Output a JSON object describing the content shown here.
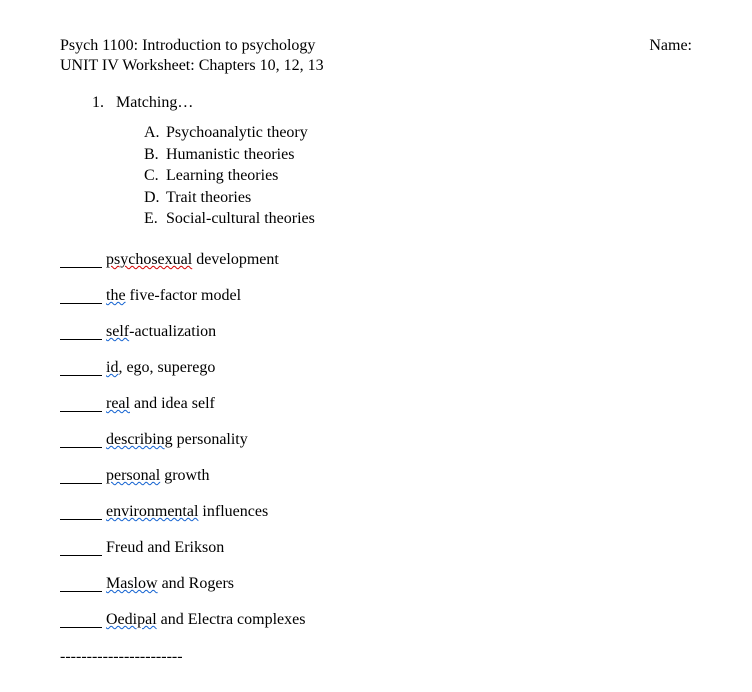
{
  "header": {
    "course_line": "Psych 1100:  Introduction to psychology",
    "name_label": "Name:",
    "unit_line": "UNIT IV Worksheet:  Chapters 10, 12, 13"
  },
  "question": {
    "number": "1.",
    "title": "Matching…"
  },
  "options": [
    {
      "letter": "A.",
      "text": "Psychoanalytic theory"
    },
    {
      "letter": "B.",
      "text": "Humanistic theories"
    },
    {
      "letter": "C.",
      "text": "Learning theories"
    },
    {
      "letter": "D.",
      "text": "Trait theories"
    },
    {
      "letter": "E.",
      "text": "Social-cultural theories"
    }
  ],
  "items": [
    {
      "pre": "psychosexual",
      "post": " development",
      "ul": "red"
    },
    {
      "pre": "the",
      "post": " five-factor model",
      "ul": "blue"
    },
    {
      "pre": "self",
      "post": "-actualization",
      "ul": "blue"
    },
    {
      "pre": "id",
      "post": ", ego, superego",
      "ul": "blue"
    },
    {
      "pre": "real",
      "post": " and idea self",
      "ul": "blue"
    },
    {
      "pre": "describing",
      "post": " personality",
      "ul": "blue"
    },
    {
      "pre": "personal",
      "post": " growth",
      "ul": "blue"
    },
    {
      "pre": "environmental",
      "post": " influences",
      "ul": "blue"
    },
    {
      "pre": "",
      "post": " Freud and Erikson",
      "ul": "none"
    },
    {
      "pre": "Maslow",
      "post": " and Rogers",
      "ul": "blue"
    },
    {
      "pre": "Oedipal",
      "post": " and Electra complexes",
      "ul": "blue"
    }
  ],
  "footer_dash": "-----------------------"
}
